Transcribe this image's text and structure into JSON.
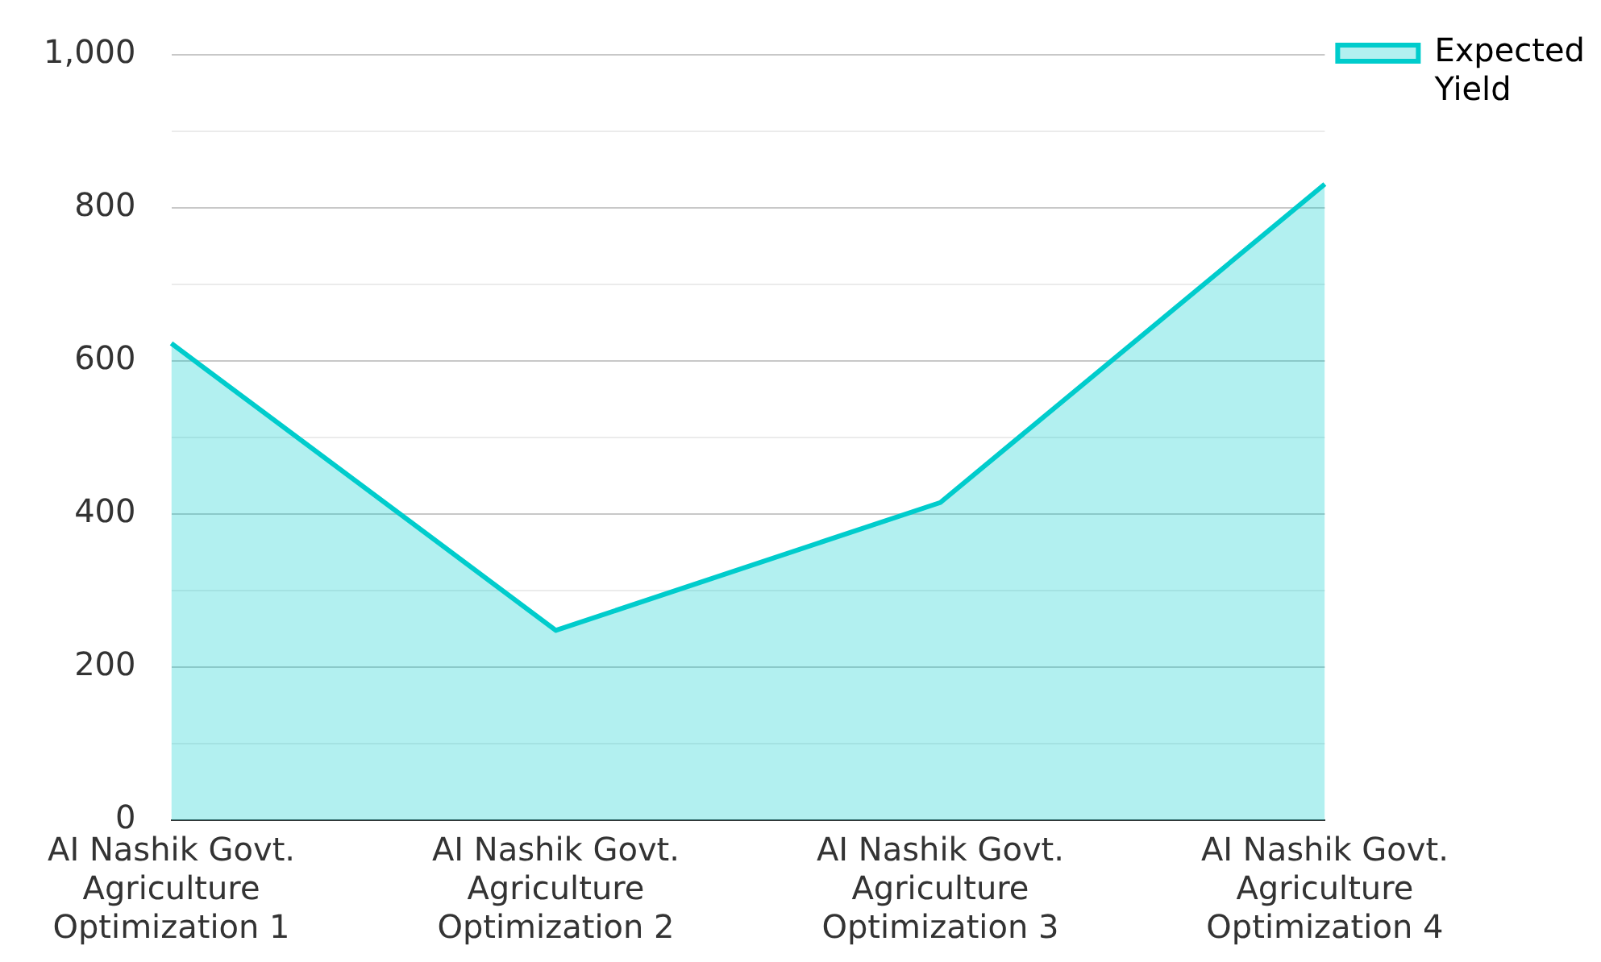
{
  "chart_data": {
    "type": "area",
    "categories": [
      "AI Nashik Govt. Agriculture Optimization 1",
      "AI Nashik Govt. Agriculture Optimization 2",
      "AI Nashik Govt. Agriculture Optimization 3",
      "AI Nashik Govt. Agriculture Optimization 4"
    ],
    "series": [
      {
        "name": "Expected Yield",
        "color": "#00cccc",
        "values": [
          623,
          248,
          415,
          831
        ]
      }
    ],
    "ylim": [
      0,
      1000
    ],
    "yticks": [
      0,
      {
        "value": 100,
        "label": null
      },
      200,
      {
        "value": 300,
        "label": null
      },
      400,
      {
        "value": 500,
        "label": null
      },
      600,
      {
        "value": 700,
        "label": null
      },
      800,
      {
        "value": 900,
        "label": null
      },
      {
        "value": 1000,
        "label": "1,000"
      }
    ],
    "grid": "y",
    "legend": "top right",
    "marker": "none"
  }
}
